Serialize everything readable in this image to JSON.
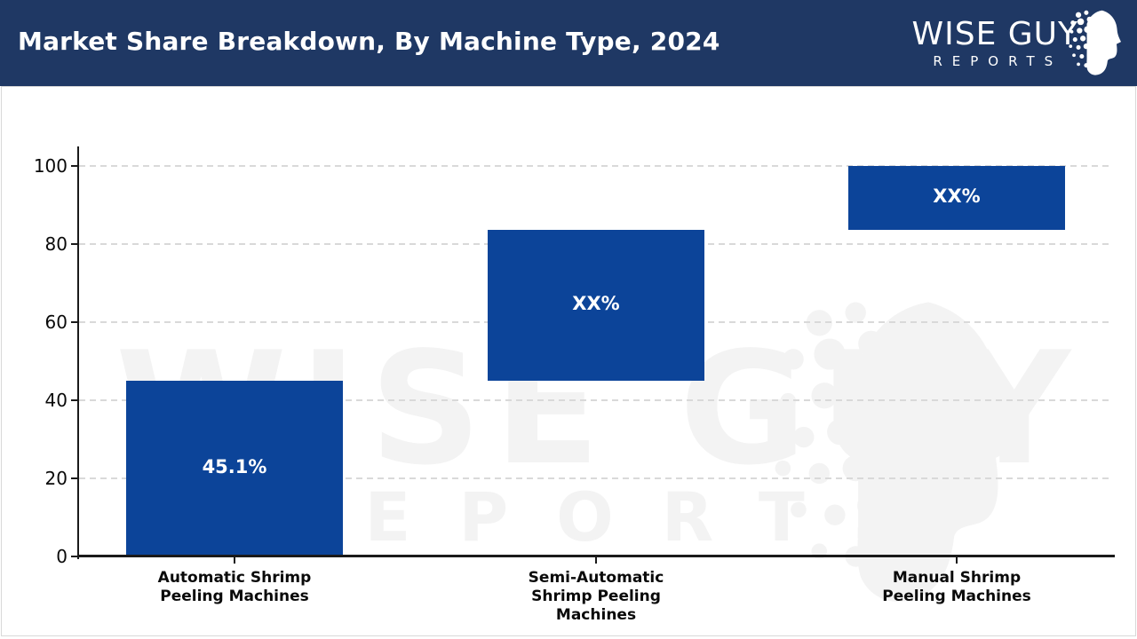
{
  "header": {
    "title": "Market Share Breakdown, By Machine Type, 2024",
    "logo": {
      "line1": "WISE GUY",
      "line2": "REPORTS"
    }
  },
  "watermark": {
    "line1": "WISE GUY",
    "line2": "REPORTS"
  },
  "chart_data": {
    "type": "bar",
    "subtype": "waterfall",
    "title": "Market Share Breakdown, By Machine Type, 2024",
    "categories": [
      [
        "Automatic Shrimp",
        "Peeling Machines"
      ],
      [
        "Semi-Automatic",
        "Shrimp Peeling",
        "Machines"
      ],
      [
        "Manual Shrimp",
        "Peeling Machines"
      ]
    ],
    "segments": [
      {
        "category": "Automatic Shrimp Peeling Machines",
        "start": 0,
        "end": 45.1,
        "label": "45.1%",
        "value_hidden": false
      },
      {
        "category": "Semi-Automatic Shrimp Peeling Machines",
        "start": 45.1,
        "end": 83.7,
        "label": "XX%",
        "value_hidden": true
      },
      {
        "category": "Manual Shrimp Peeling Machines",
        "start": 83.7,
        "end": 100,
        "label": "XX%",
        "value_hidden": true
      }
    ],
    "ylim": [
      0,
      100
    ],
    "yticks": [
      0,
      20,
      40,
      60,
      80,
      100
    ],
    "grid": "horizontal-dashed",
    "legend": "none",
    "xlabel": "",
    "ylabel": ""
  },
  "colors": {
    "header_bg": "#1f3864",
    "bar": "#0c4499",
    "bar_label": "#ffffff",
    "grid": "#d9d9d9",
    "axis": "#1a1a1a",
    "text": "#0a0a0a",
    "watermark": "#f3f3f3",
    "card_border": "#d9d9d9"
  }
}
